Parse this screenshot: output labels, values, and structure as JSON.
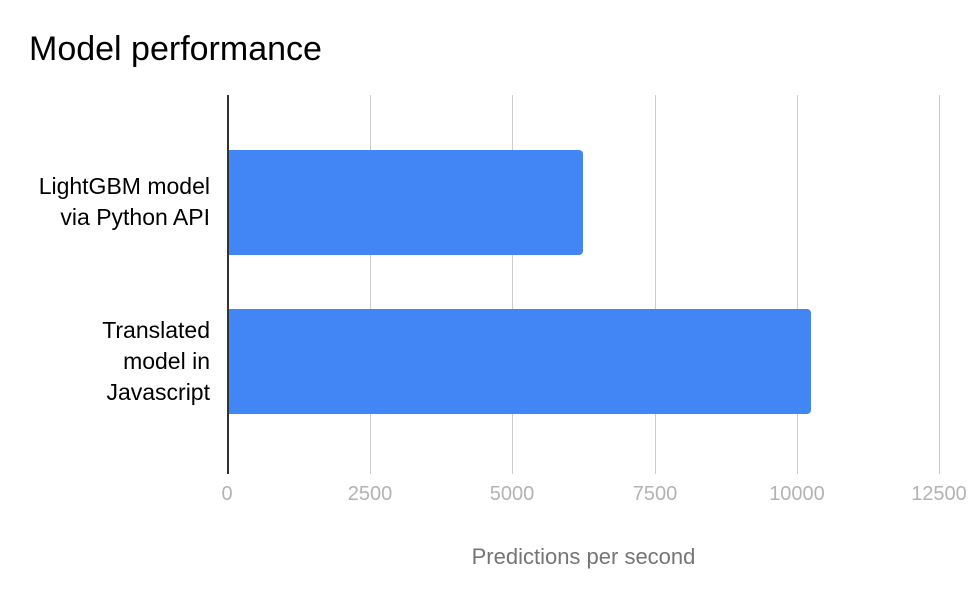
{
  "title": "Model performance",
  "chart_data": {
    "type": "bar",
    "orientation": "horizontal",
    "title": "Model performance",
    "categories": [
      "LightGBM model via Python API",
      "Translated model in Javascript"
    ],
    "category_lines": [
      [
        "LightGBM model",
        "via Python API"
      ],
      [
        "Translated",
        "model in",
        "Javascript"
      ]
    ],
    "values": [
      6200,
      10200
    ],
    "xlabel": "Predictions per second",
    "ylabel": "",
    "xlim": [
      0,
      12500
    ],
    "xtick_values": [
      0,
      2500,
      5000,
      7500,
      10000,
      12500
    ],
    "xtick_labels": [
      "0",
      "2500",
      "5000",
      "7500",
      "10000",
      "12500"
    ],
    "grid": true,
    "legend": "none",
    "colors": {
      "bar": "#4285f4",
      "background": "#ffffff",
      "gridline": "#cccccc",
      "baseline": "#333333",
      "tick_label": "#b3b3b3",
      "axis_title": "#757575",
      "title": "#000000",
      "category_label": "#000000"
    }
  }
}
